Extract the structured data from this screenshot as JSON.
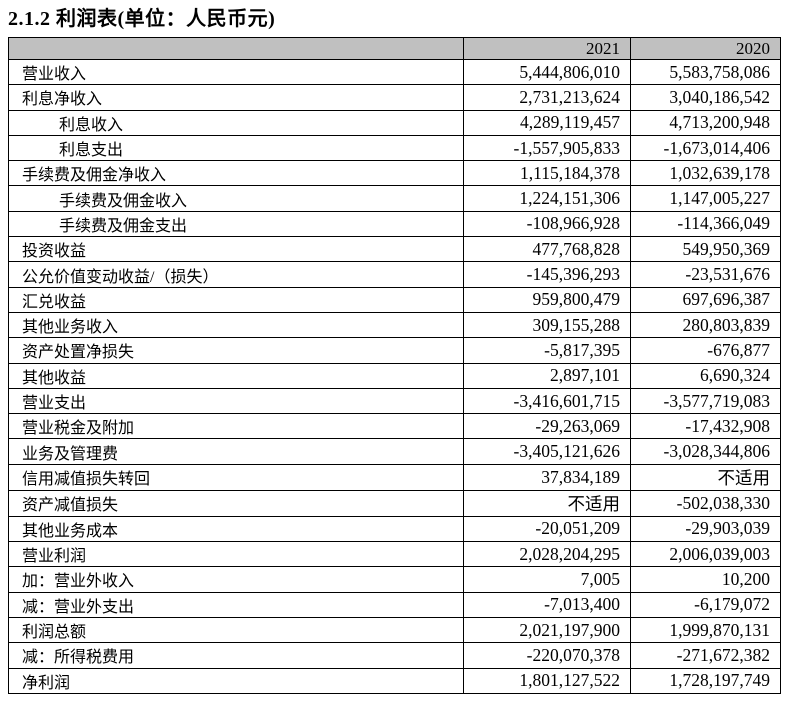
{
  "title": "2.1.2 利润表(单位：人民币元)",
  "colors": {
    "header_bg": "#c0c0c0",
    "border": "#000000",
    "text": "#000000"
  },
  "table": {
    "header": {
      "label": "",
      "col2021": "2021",
      "col2020": "2020"
    },
    "rows": [
      {
        "label": "营业收入",
        "indent": false,
        "v2021": "5,444,806,010",
        "v2020": "5,583,758,086"
      },
      {
        "label": "利息净收入",
        "indent": false,
        "v2021": "2,731,213,624",
        "v2020": "3,040,186,542"
      },
      {
        "label": "利息收入",
        "indent": true,
        "v2021": "4,289,119,457",
        "v2020": "4,713,200,948"
      },
      {
        "label": "利息支出",
        "indent": true,
        "v2021": "-1,557,905,833",
        "v2020": "-1,673,014,406"
      },
      {
        "label": "手续费及佣金净收入",
        "indent": false,
        "v2021": "1,115,184,378",
        "v2020": "1,032,639,178"
      },
      {
        "label": "手续费及佣金收入",
        "indent": true,
        "v2021": "1,224,151,306",
        "v2020": "1,147,005,227"
      },
      {
        "label": "手续费及佣金支出",
        "indent": true,
        "v2021": "-108,966,928",
        "v2020": "-114,366,049"
      },
      {
        "label": "投资收益",
        "indent": false,
        "v2021": "477,768,828",
        "v2020": "549,950,369"
      },
      {
        "label": "公允价值变动收益/（损失）",
        "indent": false,
        "v2021": "-145,396,293",
        "v2020": "-23,531,676"
      },
      {
        "label": "汇兑收益",
        "indent": false,
        "v2021": "959,800,479",
        "v2020": "697,696,387"
      },
      {
        "label": "其他业务收入",
        "indent": false,
        "v2021": "309,155,288",
        "v2020": "280,803,839"
      },
      {
        "label": "资产处置净损失",
        "indent": false,
        "v2021": "-5,817,395",
        "v2020": "-676,877"
      },
      {
        "label": "其他收益",
        "indent": false,
        "v2021": "2,897,101",
        "v2020": "6,690,324"
      },
      {
        "label": "营业支出",
        "indent": false,
        "v2021": "-3,416,601,715",
        "v2020": "-3,577,719,083"
      },
      {
        "label": "营业税金及附加",
        "indent": false,
        "v2021": "-29,263,069",
        "v2020": "-17,432,908"
      },
      {
        "label": "业务及管理费",
        "indent": false,
        "v2021": "-3,405,121,626",
        "v2020": "-3,028,344,806"
      },
      {
        "label": "信用减值损失转回",
        "indent": false,
        "v2021": "37,834,189",
        "v2020": "不适用"
      },
      {
        "label": "资产减值损失",
        "indent": false,
        "v2021": "不适用",
        "v2020": "-502,038,330"
      },
      {
        "label": "其他业务成本",
        "indent": false,
        "v2021": "-20,051,209",
        "v2020": "-29,903,039"
      },
      {
        "label": "营业利润",
        "indent": false,
        "v2021": "2,028,204,295",
        "v2020": "2,006,039,003"
      },
      {
        "label": "加：营业外收入",
        "indent": false,
        "v2021": "7,005",
        "v2020": "10,200"
      },
      {
        "label": "减：营业外支出",
        "indent": false,
        "v2021": "-7,013,400",
        "v2020": "-6,179,072"
      },
      {
        "label": "利润总额",
        "indent": false,
        "v2021": "2,021,197,900",
        "v2020": "1,999,870,131"
      },
      {
        "label": "减：所得税费用",
        "indent": false,
        "v2021": "-220,070,378",
        "v2020": "-271,672,382"
      },
      {
        "label": "净利润",
        "indent": false,
        "v2021": "1,801,127,522",
        "v2020": "1,728,197,749"
      }
    ]
  }
}
